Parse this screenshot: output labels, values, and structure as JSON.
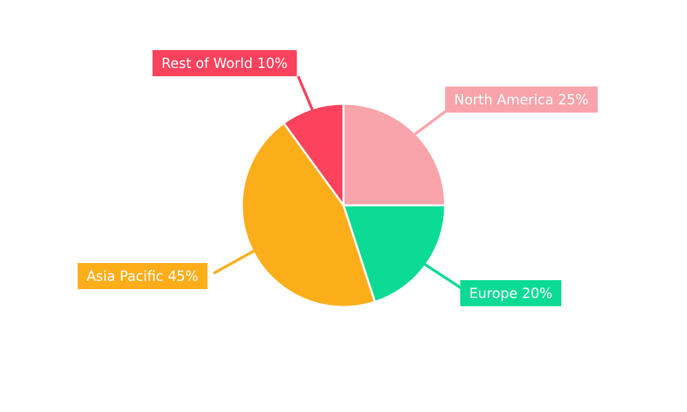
{
  "chart_data": {
    "type": "pie",
    "title": "",
    "background": "#FFFFFF",
    "legend_position": "none",
    "start_angle": "12-oclock",
    "direction": "clockwise",
    "unit": "%",
    "label_style": "outside colored boxes with matching leader lines, white text",
    "categories": [
      "North America",
      "Europe",
      "Asia Pacific",
      "Rest of World"
    ],
    "values": [
      25,
      20,
      45,
      10
    ],
    "slices": [
      {
        "label": "North America",
        "value": 25,
        "pct_text": "25%",
        "display_label": "North America 25%",
        "color": "#F9A4AA"
      },
      {
        "label": "Europe",
        "value": 20,
        "pct_text": "20%",
        "display_label": "Europe 20%",
        "color": "#0BDB94"
      },
      {
        "label": "Asia Pacific",
        "value": 45,
        "pct_text": "45%",
        "display_label": "Asia Pacific 45%",
        "color": "#FCAE1A"
      },
      {
        "label": "Rest of World",
        "value": 10,
        "pct_text": "10%",
        "display_label": "Rest of World 10%",
        "color": "#FC425D"
      }
    ]
  }
}
